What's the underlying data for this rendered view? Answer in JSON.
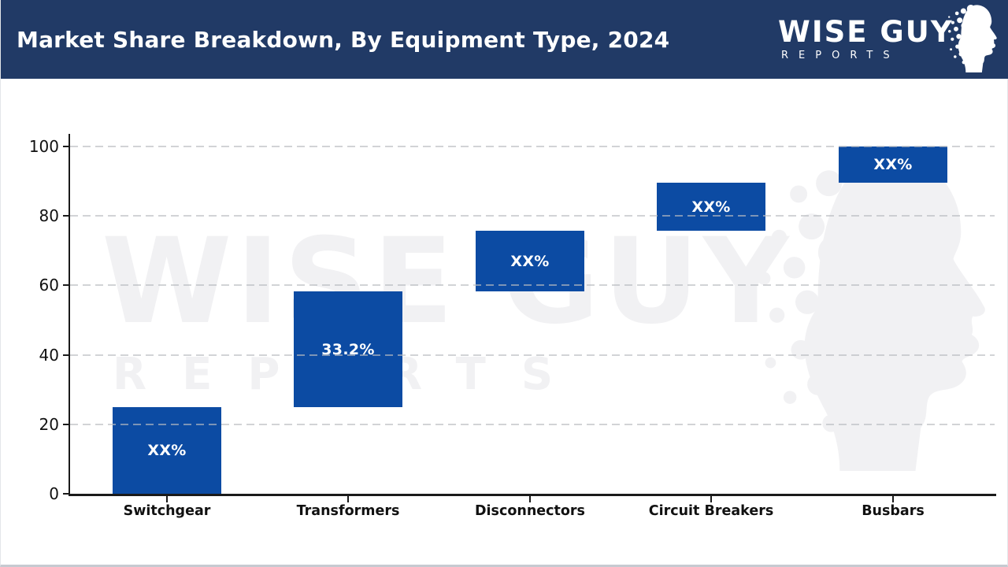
{
  "header": {
    "title": "Market Share Breakdown, By Equipment Type, 2024",
    "logo": {
      "name": "WISE GUY",
      "subname": "REPORTS"
    }
  },
  "watermark": {
    "name": "WISE GUY",
    "subname": "REPORTS"
  },
  "colors": {
    "header_bg": "#213a66",
    "bar": "#0c4ba3",
    "bar_label": "#ffffff",
    "axis": "#1a1a1a",
    "gridline": "#c9cbce",
    "watermark": "#f1f1f3"
  },
  "chart_data": {
    "type": "bar",
    "variant": "floating-waterfall",
    "title": "Market Share Breakdown, By Equipment Type, 2024",
    "xlabel": "",
    "ylabel": "",
    "categories": [
      "Switchgear",
      "Transformers",
      "Disconnectors",
      "Circuit Breakers",
      "Busbars"
    ],
    "segments": [
      {
        "category": "Switchgear",
        "start": 0,
        "end": 25,
        "label": "XX%"
      },
      {
        "category": "Transformers",
        "start": 25,
        "end": 58.2,
        "label": "33.2%"
      },
      {
        "category": "Disconnectors",
        "start": 58.2,
        "end": 75.7,
        "label": "XX%"
      },
      {
        "category": "Circuit Breakers",
        "start": 75.7,
        "end": 89.6,
        "label": "XX%"
      },
      {
        "category": "Busbars",
        "start": 89.6,
        "end": 100,
        "label": "XX%"
      }
    ],
    "yticks": [
      0,
      20,
      40,
      60,
      80,
      100
    ],
    "ylim": [
      0,
      103.6
    ],
    "grid": {
      "horizontal": true,
      "style": "dashed",
      "drawn_over_bars": true
    },
    "legend": null
  }
}
